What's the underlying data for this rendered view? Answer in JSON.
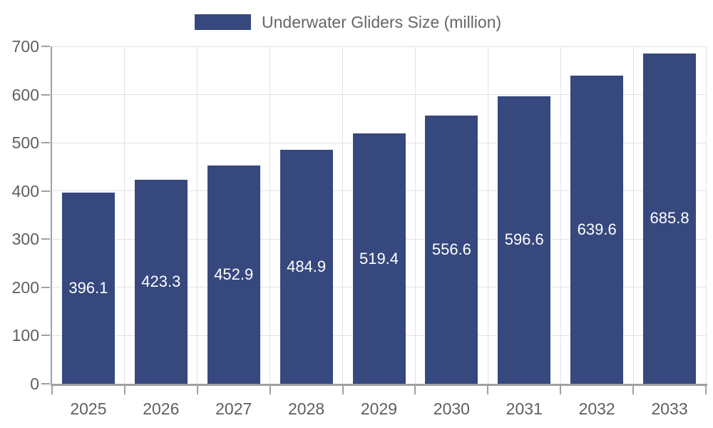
{
  "legend": {
    "label": "Underwater Gliders Size (million)"
  },
  "chart_data": {
    "type": "bar",
    "title": "Underwater Gliders Size (million)",
    "categories": [
      "2025",
      "2026",
      "2027",
      "2028",
      "2029",
      "2030",
      "2031",
      "2032",
      "2033"
    ],
    "values": [
      396.1,
      423.3,
      452.9,
      484.9,
      519.4,
      556.6,
      596.6,
      639.6,
      685.8
    ],
    "xlabel": "",
    "ylabel": "",
    "ylim": [
      0,
      700
    ],
    "yticks": [
      0,
      100,
      200,
      300,
      400,
      500,
      600,
      700
    ],
    "grid": true,
    "legend_position": "top-center",
    "bar_color": "#36487E",
    "value_label_color": "#FFFFFF",
    "axis_text_color": "#5F5F5F",
    "legend_text_color": "#666666",
    "grid_color": "#E2E2E2",
    "axis_line_color": "#A0A0A0"
  }
}
